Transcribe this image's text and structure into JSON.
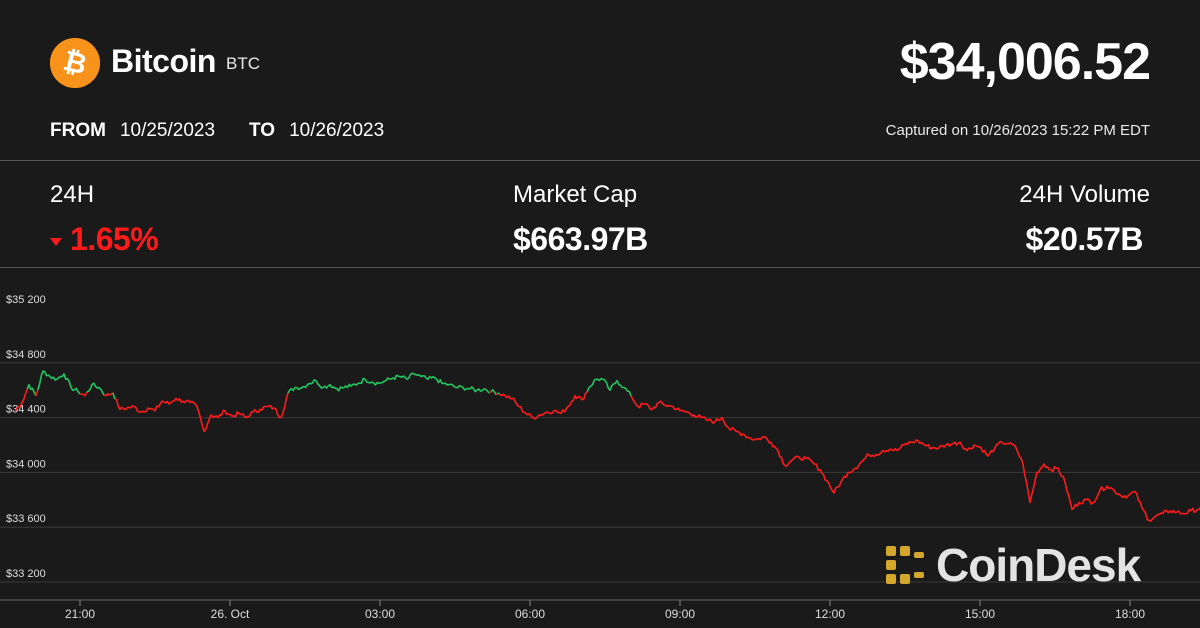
{
  "header": {
    "coin_icon": "bitcoin-icon",
    "name": "Bitcoin",
    "ticker": "BTC",
    "price": "$34,006.52"
  },
  "range": {
    "from_label": "FROM",
    "from_date": "10/25/2023",
    "to_label": "TO",
    "to_date": "10/26/2023"
  },
  "captured": "Captured on 10/26/2023 15:22 PM EDT",
  "stats": {
    "change_label": "24H",
    "change_value": "1.65%",
    "change_icon": "down-triangle-icon",
    "market_cap_label": "Market Cap",
    "market_cap_value": "$663.97B",
    "volume_label": "24H Volume",
    "volume_value": "$20.57B"
  },
  "colors": {
    "background": "#1a1a1a",
    "up": "#22c55e",
    "down": "#ff1a1a",
    "bitcoin_orange": "#f7931a",
    "watermark_gold": "#d4a72c"
  },
  "watermark": "CoinDesk",
  "chart_data": {
    "type": "line",
    "ylim": [
      33050,
      35400
    ],
    "y_ticks": [
      35200,
      34800,
      34400,
      34000,
      33600,
      33200
    ],
    "y_tick_labels": [
      "$35 200",
      "$34 800",
      "$34 400",
      "$34 000",
      "$33 600",
      "$33 200"
    ],
    "x_ticks": [
      0,
      15,
      30,
      45,
      60,
      75,
      90,
      105,
      120
    ],
    "x_tick_labels": [
      "21:00",
      "26. Oct",
      "03:00",
      "06:00",
      "09:00",
      "12:00",
      "15:00",
      "18:00"
    ],
    "xlim": [
      -6.5,
      119.8
    ],
    "x_tick_positions": [
      0,
      15,
      30,
      45,
      60,
      75,
      90,
      105
    ],
    "x_unit": "intervals of 12 minutes starting 21:00",
    "baseline": 34580,
    "grid": true,
    "series": [
      {
        "values": [
          34450,
          34510,
          34640,
          34560,
          34740,
          34700,
          34680,
          34720,
          34620,
          34590,
          34560,
          34640,
          34620,
          34560,
          34580,
          34460,
          34470,
          34480,
          34440,
          34470,
          34450,
          34520,
          34500,
          34540,
          34520,
          34510,
          34480,
          34300,
          34420,
          34400,
          34450,
          34410,
          34430,
          34400,
          34440,
          34460,
          34480,
          34470,
          34400,
          34580,
          34620,
          34620,
          34650,
          34670,
          34620,
          34640,
          34610,
          34620,
          34630,
          34650,
          34680,
          34660,
          34650,
          34670,
          34690,
          34700,
          34680,
          34720,
          34700,
          34680,
          34690,
          34650,
          34640,
          34620,
          34620,
          34610,
          34600,
          34610,
          34590,
          34580,
          34560,
          34540,
          34480,
          34430,
          34400,
          34420,
          34440,
          34450,
          34430,
          34480,
          34560,
          34530,
          34620,
          34680,
          34680,
          34600,
          34670,
          34620,
          34560,
          34480,
          34500,
          34460,
          34510,
          34490,
          34480,
          34450,
          34440,
          34420,
          34400,
          34380,
          34370,
          34400,
          34320,
          34300,
          34280,
          34250,
          34240,
          34260,
          34220,
          34160,
          34050,
          34090,
          34110,
          34100,
          34070,
          34020,
          33940,
          33850,
          33930,
          34000,
          34030,
          34080,
          34130,
          34130,
          34160,
          34170,
          34160,
          34200,
          34220,
          34230,
          34200,
          34180,
          34180,
          34200,
          34210,
          34220,
          34160,
          34200,
          34180,
          34120,
          34180,
          34220,
          34210,
          34180,
          34060,
          33780,
          34000,
          34060,
          34020,
          34030,
          33930,
          33730,
          33780,
          33800,
          33780,
          33870,
          33900,
          33870,
          33830,
          33830,
          33860,
          33740,
          33650,
          33680,
          33700,
          33720,
          33710,
          33700,
          33720,
          33730,
          33770,
          33790,
          33820,
          33840,
          33880,
          33900,
          33920,
          33930,
          33940,
          33910,
          33900,
          33930,
          33910,
          33890,
          33920,
          33900
        ]
      }
    ]
  }
}
